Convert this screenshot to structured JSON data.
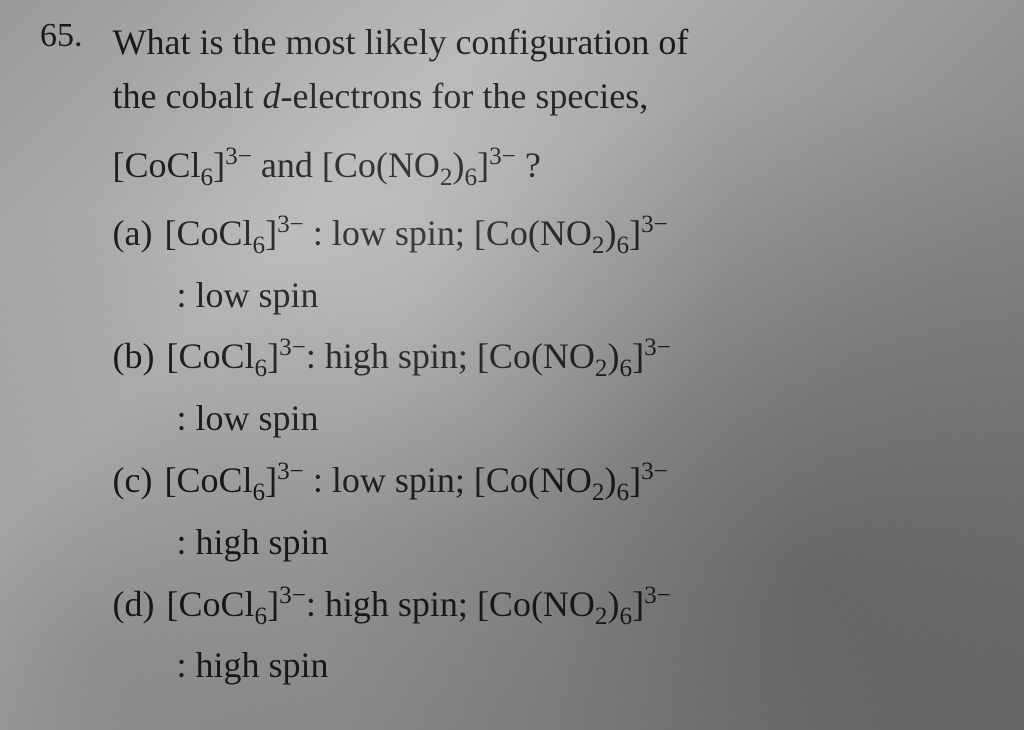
{
  "question": {
    "number": "65.",
    "line1": "What is the most likely configuration of",
    "line2_pre": "the cobalt ",
    "line2_d": "d",
    "line2_post": "-electrons for the species,",
    "formula_a_open": "[CoCl",
    "formula_a_sub": "6",
    "formula_a_close": "]",
    "formula_a_sup": "3−",
    "and": " and ",
    "formula_b_open": "[Co(NO",
    "formula_b_sub1": "2",
    "formula_b_mid": ")",
    "formula_b_sub2": "6",
    "formula_b_close": "]",
    "formula_b_sup": "3−",
    "qmark": " ?"
  },
  "options": {
    "a": {
      "label": "(a)",
      "p1_open": "[CoCl",
      "p1_sub": "6",
      "p1_close": "]",
      "p1_sup": "3−",
      "p1_desc": " : low spin; ",
      "p2_open": "[Co(NO",
      "p2_sub1": "2",
      "p2_mid": ")",
      "p2_sub2": "6",
      "p2_close": "]",
      "p2_sup": "3−",
      "cont": ": low spin"
    },
    "b": {
      "label": "(b)",
      "p1_open": "[CoCl",
      "p1_sub": "6",
      "p1_close": "]",
      "p1_sup": "3−",
      "p1_desc": ": high spin; ",
      "p2_open": "[Co(NO",
      "p2_sub1": "2",
      "p2_mid": ")",
      "p2_sub2": "6",
      "p2_close": "]",
      "p2_sup": "3−",
      "cont": ": low spin"
    },
    "c": {
      "label": "(c)",
      "p1_open": "[CoCl",
      "p1_sub": "6",
      "p1_close": "]",
      "p1_sup": "3−",
      "p1_desc": " : low spin; ",
      "p2_open": "[Co(NO",
      "p2_sub1": "2",
      "p2_mid": ")",
      "p2_sub2": "6",
      "p2_close": "]",
      "p2_sup": "3−",
      "cont": ": high spin"
    },
    "d": {
      "label": "(d)",
      "p1_open": "[CoCl",
      "p1_sub": "6",
      "p1_close": "]",
      "p1_sup": "3−",
      "p1_desc": ": high spin; ",
      "p2_open": "[Co(NO",
      "p2_sub1": "2",
      "p2_mid": ")",
      "p2_sub2": "6",
      "p2_close": "]",
      "p2_sup": "3−",
      "cont": ": high spin"
    }
  },
  "style": {
    "font_family": "Georgia, Times New Roman, serif",
    "text_color": "#1a1a1a",
    "background_gradient": [
      "#9a9a9a",
      "#b5b5b5",
      "#888888",
      "#707070"
    ],
    "question_number_fontsize": 34,
    "body_fontsize": 36,
    "line_height": 1.55
  }
}
